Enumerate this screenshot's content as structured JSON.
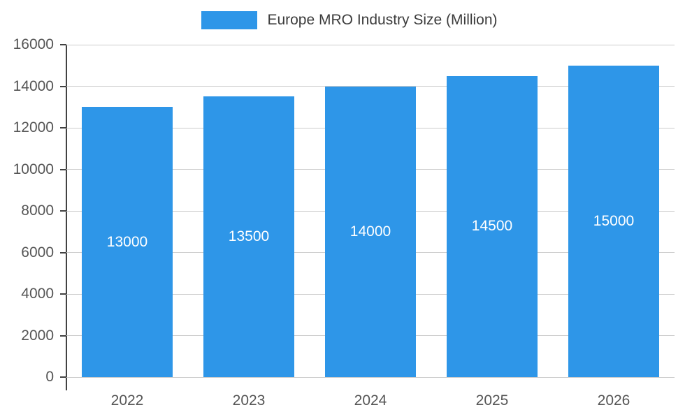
{
  "chart_data": {
    "type": "bar",
    "title": "Europe MRO Industry Size (Million)",
    "categories": [
      "2022",
      "2023",
      "2024",
      "2025",
      "2026"
    ],
    "values": [
      13000,
      13500,
      14000,
      14500,
      15000
    ],
    "bar_labels": [
      "13000",
      "13500",
      "14000",
      "14500",
      "15000"
    ],
    "xlabel": "",
    "ylabel": "",
    "ylim": [
      0,
      16000
    ],
    "yticks": [
      0,
      2000,
      4000,
      6000,
      8000,
      10000,
      12000,
      14000,
      16000
    ],
    "grid": true,
    "legend_position": "top",
    "colors": {
      "bar": "#2E96E8",
      "grid": "#cccccc",
      "axis": "#424242",
      "tick_text": "#555555",
      "bar_value_text": "#ffffff"
    }
  }
}
